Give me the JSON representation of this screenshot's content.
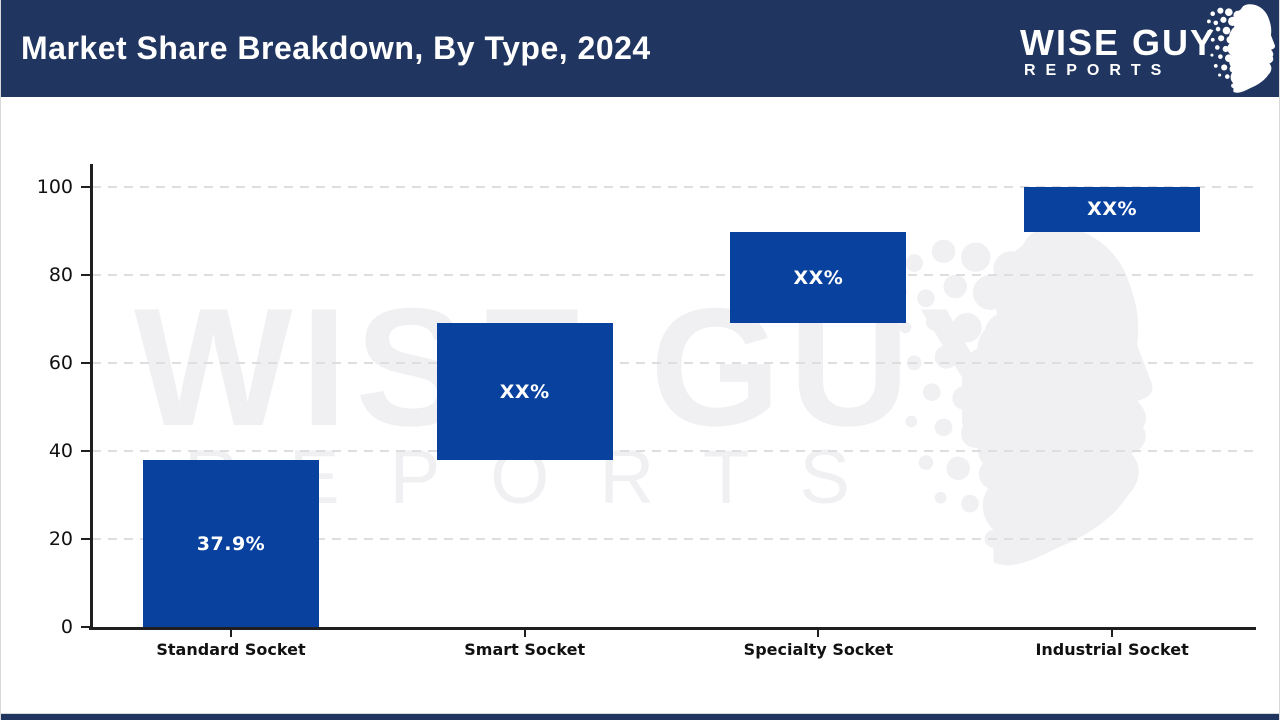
{
  "header": {
    "title": "Market Share Breakdown, By Type, 2024",
    "bg_color": "#20355f",
    "logo": {
      "line1": "WISE GUY",
      "line2": "REPORTS"
    }
  },
  "watermark": {
    "line1": "WISE GUY",
    "line2": "REPORTS",
    "color": "#f0f0f3"
  },
  "footer": {
    "bg_color": "#20355f"
  },
  "chart_data": {
    "type": "bar",
    "variant": "waterfall-stacked-percentage",
    "title": "Market Share Breakdown, By Type, 2024",
    "categories": [
      "Standard Socket",
      "Smart Socket",
      "Specialty Socket",
      "Industrial Socket"
    ],
    "segments": [
      {
        "category": "Standard Socket",
        "start": 0,
        "end": 37.9,
        "label": "37.9%"
      },
      {
        "category": "Smart Socket",
        "start": 37.9,
        "end": 69.0,
        "label": "XX%"
      },
      {
        "category": "Specialty Socket",
        "start": 69.0,
        "end": 89.8,
        "label": "XX%"
      },
      {
        "category": "Industrial Socket",
        "start": 89.8,
        "end": 100,
        "label": "XX%"
      }
    ],
    "y_ticks": [
      0,
      20,
      40,
      60,
      80,
      100
    ],
    "ylim": [
      0,
      105
    ],
    "xlabel": "",
    "ylabel": "",
    "grid": true,
    "legend": false,
    "bar_color": "#09419e",
    "value_label_color": "#ffffff",
    "axis_color": "#1f1f1f",
    "gridline_color": "#dedede"
  }
}
